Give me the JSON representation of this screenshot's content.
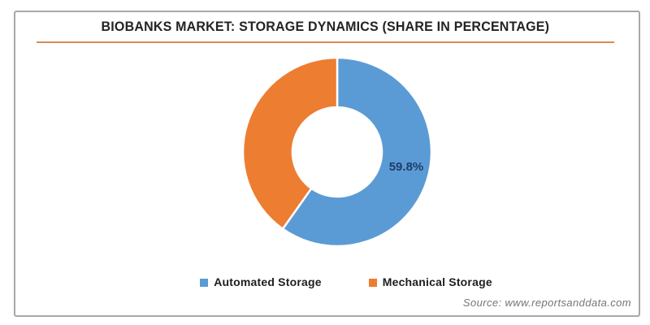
{
  "title": "BIOBANKS MARKET: STORAGE DYNAMICS (SHARE IN PERCENTAGE)",
  "source": "Source: www.reportsanddata.com",
  "colors": {
    "automated_blue": "#5B9BD5",
    "mechanical_orange": "#ED7D31",
    "slice_label_text": "#1F3D68",
    "title_divider": "#D98C54",
    "frame_border": "#A8A8A8",
    "title_text": "#232323",
    "source_text": "#757575",
    "segment_separator": "#FFFFFF"
  },
  "chart_data": {
    "type": "pie",
    "subtype": "donut",
    "title": "BIOBANKS MARKET: STORAGE DYNAMICS (SHARE IN PERCENTAGE)",
    "categories": [
      "Automated Storage",
      "Mechanical Storage"
    ],
    "values": [
      59.8,
      40.2
    ],
    "labels": [
      "59.8%",
      ""
    ],
    "slice_colors": [
      "#5B9BD5",
      "#ED7D31"
    ],
    "start_angle_deg": 0,
    "direction": "clockwise",
    "inner_radius_ratio": 0.475,
    "legend_position": "bottom",
    "grid": "off"
  },
  "legend": {
    "items": [
      {
        "label": "Automated Storage",
        "color": "#5B9BD5"
      },
      {
        "label": "Mechanical Storage",
        "color": "#ED7D31"
      }
    ]
  }
}
